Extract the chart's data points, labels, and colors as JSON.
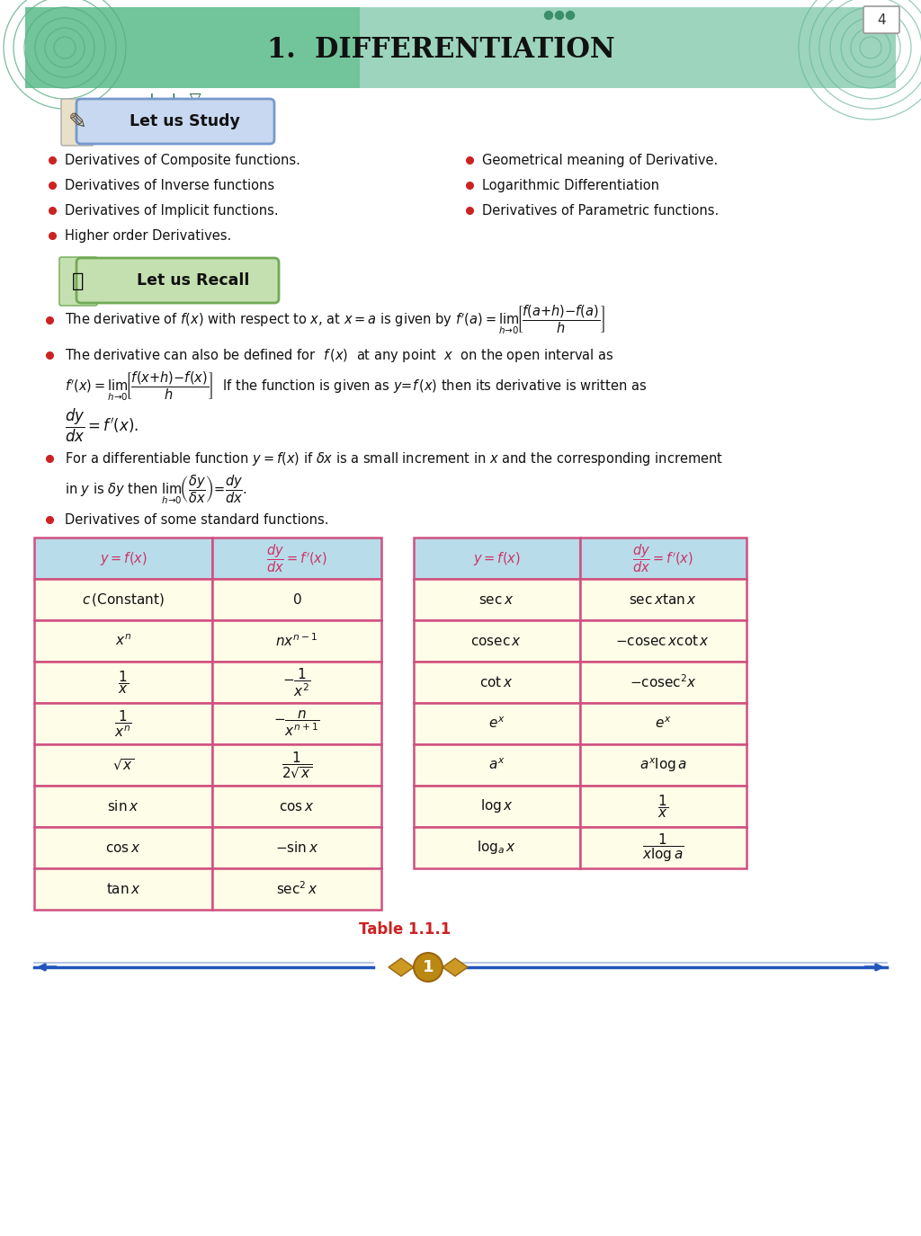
{
  "title": "1.  DIFFERENTIATION",
  "header_color_left": "#72c49a",
  "header_color_right": "#9dd4be",
  "ripple_color": "#5aad82",
  "let_us_study_left": [
    "Derivatives of Composite functions.",
    "Derivatives of Inverse functions",
    "Derivatives of Implicit functions.",
    "Higher order Derivatives."
  ],
  "let_us_study_right": [
    "Geometrical meaning of Derivative.",
    "Logarithmic Differentiation",
    "Derivatives of Parametric functions."
  ],
  "left_table_rows": [
    [
      "c\\,(\\mathrm{Constant})",
      "0"
    ],
    [
      "x^n",
      "nx^{n-1}"
    ],
    [
      "\\dfrac{1}{x}",
      "-\\dfrac{1}{x^2}"
    ],
    [
      "\\dfrac{1}{x^n}",
      "-\\dfrac{n}{x^{n+1}}"
    ],
    [
      "\\sqrt{x}",
      "\\dfrac{1}{2\\sqrt{x}}"
    ],
    [
      "\\sin x",
      "\\cos x"
    ],
    [
      "\\cos x",
      "-\\sin x"
    ],
    [
      "\\tan x",
      "\\sec^2 x"
    ]
  ],
  "right_table_rows": [
    [
      "\\sec x",
      "\\sec x\\tan x"
    ],
    [
      "\\mathrm{cosec}\\,x",
      "-\\mathrm{cosec}\\,x\\cot x"
    ],
    [
      "\\cot x",
      "-\\mathrm{cosec}^2 x"
    ],
    [
      "e^x",
      "e^x"
    ],
    [
      "a^x",
      "a^x\\log a"
    ],
    [
      "\\log x",
      "\\dfrac{1}{x}"
    ],
    [
      "\\log_a x",
      "\\dfrac{1}{x\\log a}"
    ]
  ],
  "border_pink": "#d05080",
  "header_cell_blue": "#b8dcea",
  "data_cell_yellow": "#fefde8",
  "table_caption": "Table 1.1.1",
  "page_number": "1"
}
